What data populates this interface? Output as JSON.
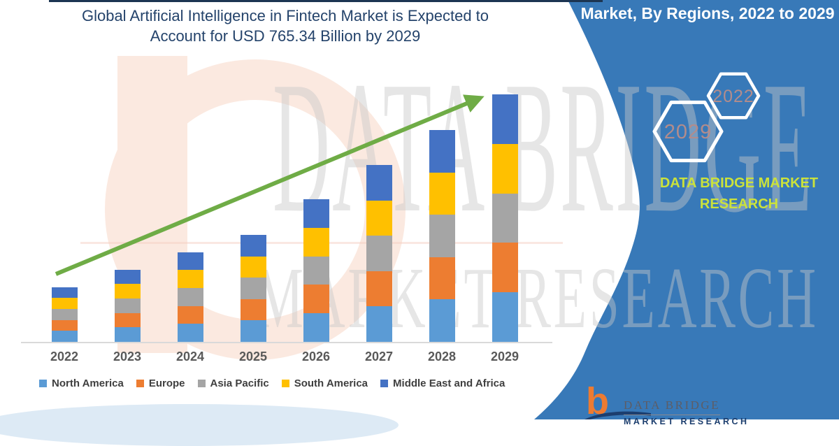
{
  "header": {
    "title_line1": "Global Artificial Intelligence in Fintech Market is Expected to",
    "title_line2": "Account for USD 765.34 Billion by 2029"
  },
  "side_panel": {
    "title": "Market, By Regions, 2022 to 2029",
    "bg_color": "#3879b8",
    "hexagons": [
      {
        "label": "2029"
      },
      {
        "label": "2022"
      }
    ],
    "hexagon_text_color": "#b28c8c",
    "brand_line1": "DATA BRIDGE MARKET",
    "brand_line2": "RESEARCH",
    "brand_color": "#cbe23b"
  },
  "watermark": {
    "line1": "DATA BRIDGE",
    "line2": "MARKET RESEARCH"
  },
  "footer_logo": {
    "b": "b",
    "name": "DATA BRIDGE",
    "tagline": "MARKET RESEARCH",
    "b_color": "#ed7b31",
    "swoosh_color": "#1c3e6e"
  },
  "chart_data": {
    "type": "bar",
    "stacked": true,
    "title": "Global Artificial Intelligence in Fintech Market is Expected to Account for USD 765.34 Billion by 2029",
    "unit": "USD Billion",
    "categories": [
      "2022",
      "2023",
      "2024",
      "2025",
      "2026",
      "2027",
      "2028",
      "2029"
    ],
    "series": [
      {
        "name": "North America",
        "color": "#5b9bd5",
        "values": [
          33.8,
          44.6,
          55.4,
          66.2,
          88.2,
          109.4,
          131.0,
          153.1
        ]
      },
      {
        "name": "Europe",
        "color": "#ed7d31",
        "values": [
          33.8,
          44.6,
          55.4,
          66.2,
          88.2,
          109.4,
          131.0,
          153.1
        ]
      },
      {
        "name": "Asia Pacific",
        "color": "#a5a5a5",
        "values": [
          33.8,
          44.6,
          55.4,
          66.2,
          88.2,
          109.4,
          131.0,
          153.1
        ]
      },
      {
        "name": "South America",
        "color": "#ffc000",
        "values": [
          33.8,
          44.6,
          55.4,
          66.2,
          88.2,
          109.4,
          131.0,
          153.1
        ]
      },
      {
        "name": "Middle East and Africa",
        "color": "#4472c4",
        "values": [
          33.8,
          44.6,
          55.4,
          66.2,
          88.2,
          109.4,
          131.0,
          153.1
        ]
      }
    ],
    "totals_estimated_usd_billion": [
      169,
      223,
      277,
      331,
      441,
      547,
      655,
      765.34
    ],
    "value_axis_shown": false,
    "gridlines": false,
    "legend_position": "bottom",
    "trend_arrow_color": "#6fac46",
    "axis_label_color": "#595959",
    "note": "No value axis is shown; yearly totals estimated from bar heights, anchoring 2029 to USD 765.34 billion stated in the title. The five regional segments of each bar are approximately equal (~20% each)."
  }
}
